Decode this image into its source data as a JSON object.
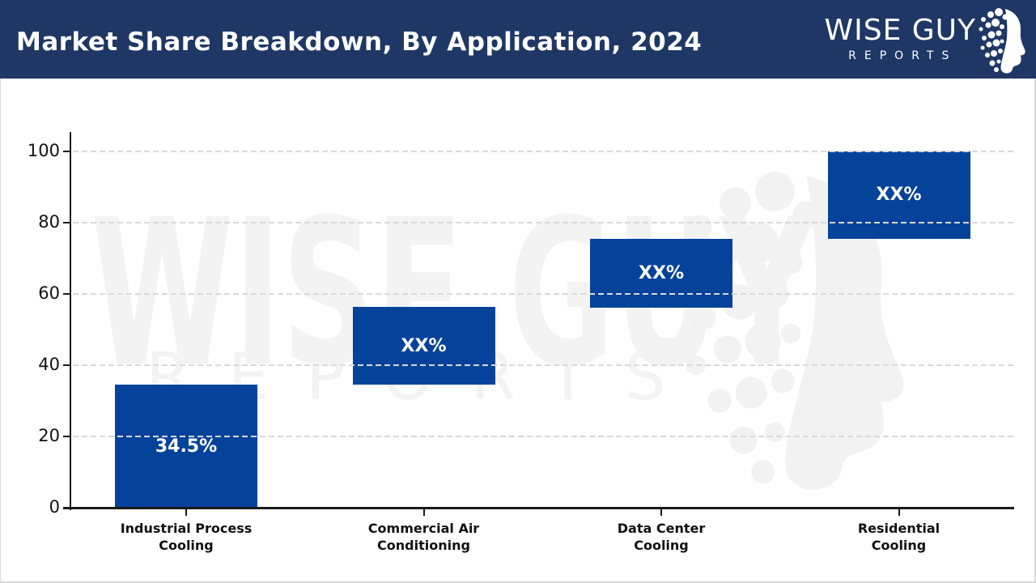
{
  "header": {
    "title": "Market Share Breakdown, By Application, 2024",
    "logo": {
      "line1": "WISE GUY",
      "line2": "REPORTS"
    }
  },
  "watermark": {
    "line1": "WISE GUY",
    "line2": "REPORTS"
  },
  "colors": {
    "header_bg": "#1f3765",
    "bar": "#05439b",
    "bar_label": "#ffffff",
    "axis": "#1a1a1a",
    "grid": "#d9d9d9",
    "watermark": "#f3f3f3"
  },
  "chart_data": {
    "type": "bar",
    "subtype": "floating-waterfall",
    "title": "Market Share Breakdown, By Application, 2024",
    "categories": [
      [
        "Industrial Process",
        "Cooling"
      ],
      [
        "Commercial Air",
        "Conditioning"
      ],
      [
        "Data Center",
        "Cooling"
      ],
      [
        "Residential",
        "Cooling"
      ]
    ],
    "bars": [
      {
        "start": 0,
        "end": 34.5,
        "label": "34.5%"
      },
      {
        "start": 34.5,
        "end": 56.4,
        "label": "XX%"
      },
      {
        "start": 56.1,
        "end": 75.5,
        "label": "XX%"
      },
      {
        "start": 75.5,
        "end": 100,
        "label": "XX%"
      }
    ],
    "yticks": [
      0,
      20,
      40,
      60,
      80,
      100
    ],
    "ylim": [
      0,
      105.5
    ],
    "xlabel": "",
    "ylabel": "",
    "grid": "horizontal-dashed",
    "legend": "none"
  }
}
